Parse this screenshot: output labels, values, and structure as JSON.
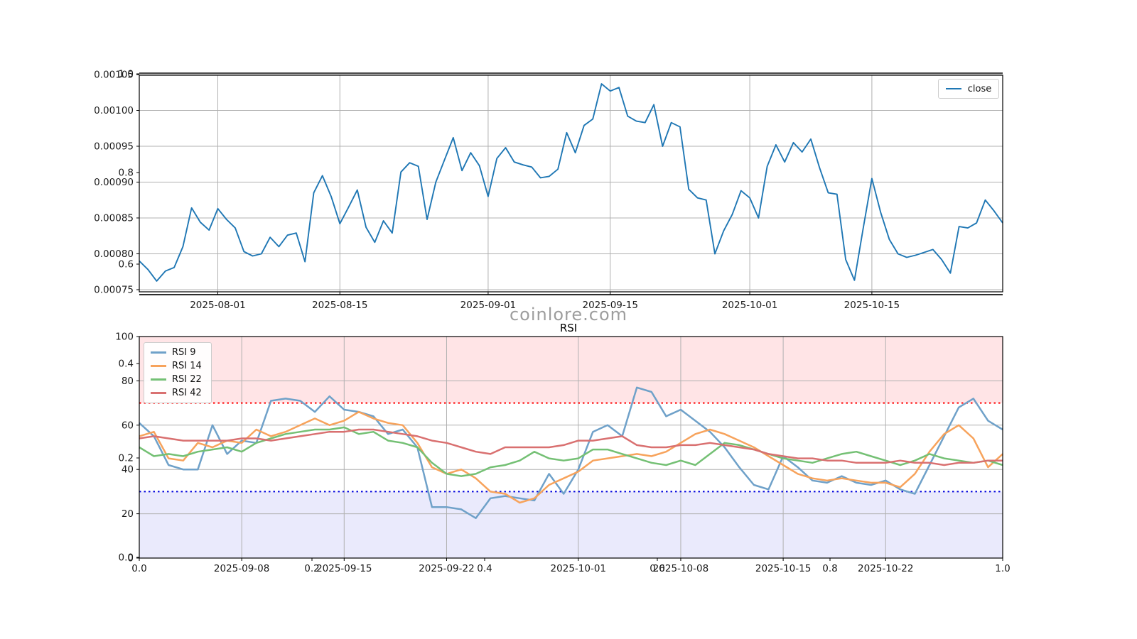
{
  "watermark": "coinlore.com",
  "colors": {
    "close_line": "#1f77b4",
    "rsi9": "#6fa1c9",
    "rsi14": "#f7a35c",
    "rsi22": "#74c074",
    "rsi42": "#d97070",
    "overbought_band": "rgba(255,90,100,0.16)",
    "oversold_band": "rgba(95,95,235,0.13)",
    "overbought_line": "#ff0000",
    "oversold_line": "#0000dd",
    "grid": "#b0b0b0",
    "frame": "#000000",
    "tick_text": "#1a1a1a"
  },
  "price_legend_label": "close",
  "ghost_axis": {
    "x_labels": [
      "0.0",
      "0.2",
      "0.4",
      "0.6",
      "0.8",
      "1.0"
    ],
    "y_labels": [
      "0.0",
      "0.2",
      "0.4",
      "0.6",
      "0.8",
      "1.0"
    ]
  },
  "chart_data": [
    {
      "type": "line",
      "name": "price",
      "title": "",
      "legend": [
        "close"
      ],
      "legend_position": "upper right",
      "grid": true,
      "ylim": [
        0.000747,
        0.001049
      ],
      "y_ticks": [
        0.00075,
        0.0008,
        0.00085,
        0.0009,
        0.00095,
        0.001,
        0.00105
      ],
      "y_tick_labels": [
        "0.00075",
        "0.00080",
        "0.00085",
        "0.00090",
        "0.00095",
        "0.00100",
        "0.00105"
      ],
      "x_tick_labels": [
        "2025-08-01",
        "2025-08-15",
        "2025-09-01",
        "2025-09-15",
        "2025-10-01",
        "2025-10-15"
      ],
      "x_tick_indices": [
        9,
        23,
        40,
        54,
        70,
        84
      ],
      "series": [
        {
          "name": "close",
          "values": [
            0.00079,
            0.000778,
            0.000762,
            0.000776,
            0.000781,
            0.00081,
            0.000864,
            0.000844,
            0.000833,
            0.000863,
            0.000848,
            0.000836,
            0.000803,
            0.000797,
            0.0008,
            0.000823,
            0.00081,
            0.000826,
            0.000829,
            0.000789,
            0.000885,
            0.000909,
            0.00088,
            0.000842,
            0.000865,
            0.000889,
            0.000837,
            0.000816,
            0.000846,
            0.000829,
            0.000914,
            0.000927,
            0.000922,
            0.000848,
            0.0009,
            0.000931,
            0.000962,
            0.000916,
            0.000941,
            0.000923,
            0.00088,
            0.000933,
            0.000948,
            0.000928,
            0.000924,
            0.000921,
            0.000906,
            0.000908,
            0.000918,
            0.000969,
            0.000941,
            0.000979,
            0.000988,
            0.001037,
            0.001027,
            0.001032,
            0.000992,
            0.000985,
            0.000983,
            0.001008,
            0.00095,
            0.000983,
            0.000977,
            0.00089,
            0.000878,
            0.000875,
            0.0008,
            0.000832,
            0.000855,
            0.000888,
            0.000878,
            0.00085,
            0.000922,
            0.000952,
            0.000928,
            0.000955,
            0.000942,
            0.00096,
            0.00092,
            0.000885,
            0.000883,
            0.000792,
            0.000763,
            0.000835,
            0.000905,
            0.000858,
            0.00082,
            0.0008,
            0.000795,
            0.000798,
            0.000802,
            0.000806,
            0.000792,
            0.000773,
            0.000838,
            0.000836,
            0.000843,
            0.000875,
            0.00086,
            0.000843
          ]
        }
      ]
    },
    {
      "type": "line",
      "name": "rsi",
      "title": "RSI",
      "legend": [
        "RSI 9",
        "RSI 14",
        "RSI 22",
        "RSI 42"
      ],
      "legend_position": "upper left",
      "grid": true,
      "ylim": [
        0,
        100
      ],
      "y_ticks": [
        0,
        20,
        40,
        60,
        80,
        100
      ],
      "y_tick_labels": [
        "0",
        "20",
        "40",
        "60",
        "80",
        "100"
      ],
      "x_tick_labels": [
        "2025-09-08",
        "2025-09-15",
        "2025-09-22",
        "2025-10-01",
        "2025-10-08",
        "2025-10-15",
        "2025-10-22"
      ],
      "x_tick_indices": [
        7,
        14,
        21,
        30,
        37,
        44,
        51
      ],
      "overbought_threshold": 70,
      "oversold_threshold": 30,
      "series": [
        {
          "name": "RSI 9",
          "values": [
            61,
            55,
            42,
            40,
            40,
            60,
            47,
            53,
            52,
            71,
            72,
            71,
            66,
            73,
            67,
            66,
            64,
            56,
            58,
            50,
            23,
            23,
            22,
            18,
            27,
            28,
            27,
            26,
            38,
            29,
            40,
            57,
            60,
            55,
            77,
            75,
            64,
            67,
            62,
            57,
            50,
            41,
            33,
            31,
            46,
            41,
            35,
            34,
            37,
            34,
            33,
            35,
            31,
            29,
            42,
            55,
            68,
            72,
            62,
            58
          ]
        },
        {
          "name": "RSI 14",
          "values": [
            55,
            57,
            45,
            44,
            52,
            50,
            53,
            52,
            58,
            55,
            57,
            60,
            63,
            60,
            62,
            66,
            63,
            61,
            60,
            52,
            41,
            38,
            40,
            36,
            30,
            29,
            25,
            27,
            33,
            36,
            39,
            44,
            45,
            46,
            47,
            46,
            48,
            52,
            56,
            58,
            56,
            53,
            50,
            46,
            42,
            38,
            36,
            35,
            36,
            35,
            34,
            34,
            32,
            38,
            48,
            56,
            60,
            54,
            41,
            47
          ]
        },
        {
          "name": "RSI 22",
          "values": [
            50,
            46,
            47,
            46,
            48,
            49,
            50,
            48,
            52,
            54,
            56,
            57,
            58,
            58,
            59,
            56,
            57,
            53,
            52,
            50,
            43,
            38,
            37,
            38,
            41,
            42,
            44,
            48,
            45,
            44,
            45,
            49,
            49,
            47,
            45,
            43,
            42,
            44,
            42,
            47,
            52,
            51,
            49,
            47,
            45,
            44,
            43,
            45,
            47,
            48,
            46,
            44,
            42,
            44,
            47,
            45,
            44,
            43,
            44,
            42
          ]
        },
        {
          "name": "RSI 42",
          "values": [
            54,
            55,
            54,
            53,
            53,
            53,
            53,
            54,
            54,
            53,
            54,
            55,
            56,
            57,
            57,
            58,
            58,
            57,
            56,
            55,
            53,
            52,
            50,
            48,
            47,
            50,
            50,
            50,
            50,
            51,
            53,
            53,
            54,
            55,
            51,
            50,
            50,
            51,
            51,
            52,
            51,
            50,
            49,
            47,
            46,
            45,
            45,
            44,
            44,
            43,
            43,
            43,
            44,
            43,
            43,
            42,
            43,
            43,
            44,
            44
          ]
        }
      ]
    }
  ]
}
